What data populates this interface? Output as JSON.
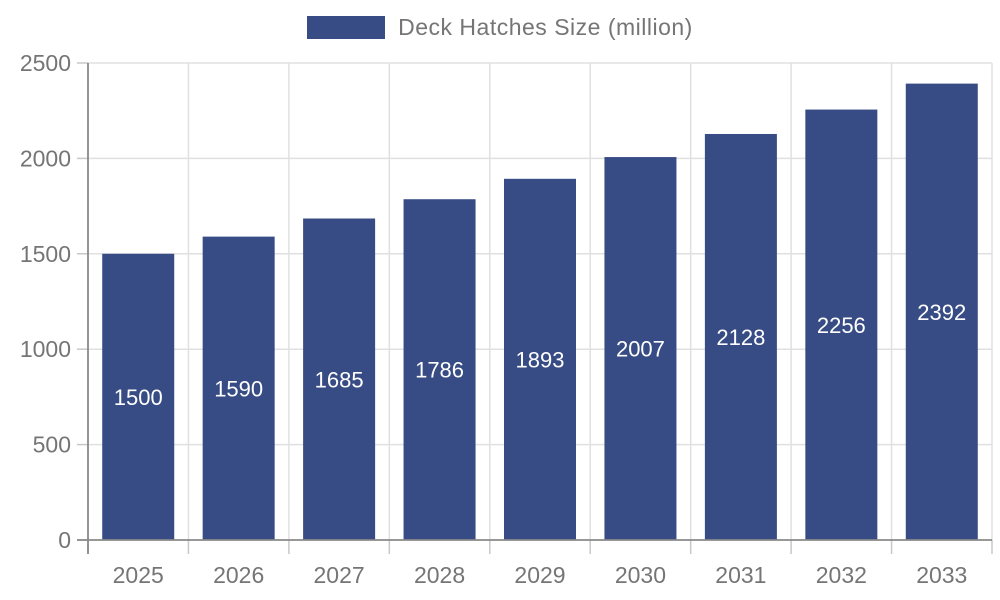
{
  "legend": {
    "label": "Deck Hatches Size (million)"
  },
  "chart_data": {
    "type": "bar",
    "title": "Deck Hatches Size (million)",
    "categories": [
      "2025",
      "2026",
      "2027",
      "2028",
      "2029",
      "2030",
      "2031",
      "2032",
      "2033"
    ],
    "values": [
      1500,
      1590,
      1685,
      1786,
      1893,
      2007,
      2128,
      2256,
      2392
    ],
    "xlabel": "",
    "ylabel": "",
    "ylim": [
      0,
      2500
    ],
    "yticks": [
      0,
      500,
      1000,
      1500,
      2000,
      2500
    ],
    "grid": true,
    "legend_position": "top-center",
    "colors": {
      "bar_fill": "#374B84",
      "value_label": "#ffffff",
      "axis_text": "#757575",
      "grid_line": "#e0e0e0",
      "axis_line": "#898989",
      "tick_line": "#c8c8c8"
    }
  }
}
